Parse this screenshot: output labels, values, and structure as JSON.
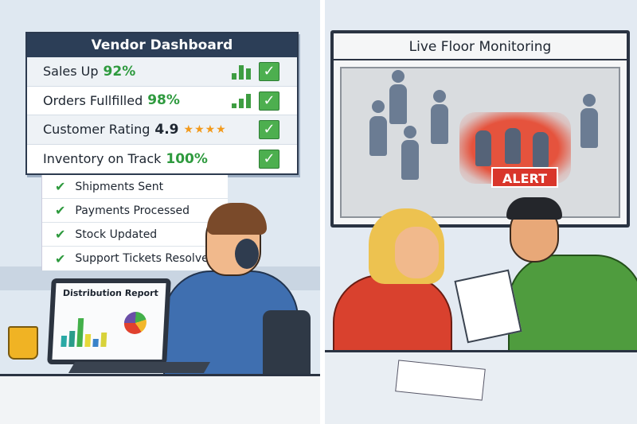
{
  "left_scene": {
    "dashboard": {
      "title": "Vendor Dashboard",
      "metrics": [
        {
          "label": "Sales Up",
          "value": "92%",
          "indicator": "bar-chart-icon",
          "status": "check-icon"
        },
        {
          "label": "Orders Fullfilled",
          "value": "98%",
          "indicator": "bar-chart-icon",
          "status": "check-icon"
        },
        {
          "label": "Customer Rating",
          "value": "4.9",
          "stars": "★★★★",
          "status": "check-icon"
        },
        {
          "label": "Inventory on Track",
          "value": "100%",
          "status": "check-icon"
        }
      ],
      "checklist": [
        {
          "icon": "✔",
          "label": "Shipments Sent"
        },
        {
          "icon": "✔",
          "label": "Payments Processed"
        },
        {
          "icon": "✔",
          "label": "Stock Updated"
        },
        {
          "icon": "✔",
          "label": "Support Tickets Resolved"
        }
      ]
    },
    "laptop": {
      "title": "Distribution Report"
    }
  },
  "right_scene": {
    "monitor": {
      "title": "Live Floor Monitoring",
      "alert_label": "ALERT"
    }
  },
  "colors": {
    "accent_green": "#2e9a3e",
    "header_navy": "#2c3e57",
    "alert_red": "#d9362b",
    "star_orange": "#f29a1c"
  }
}
